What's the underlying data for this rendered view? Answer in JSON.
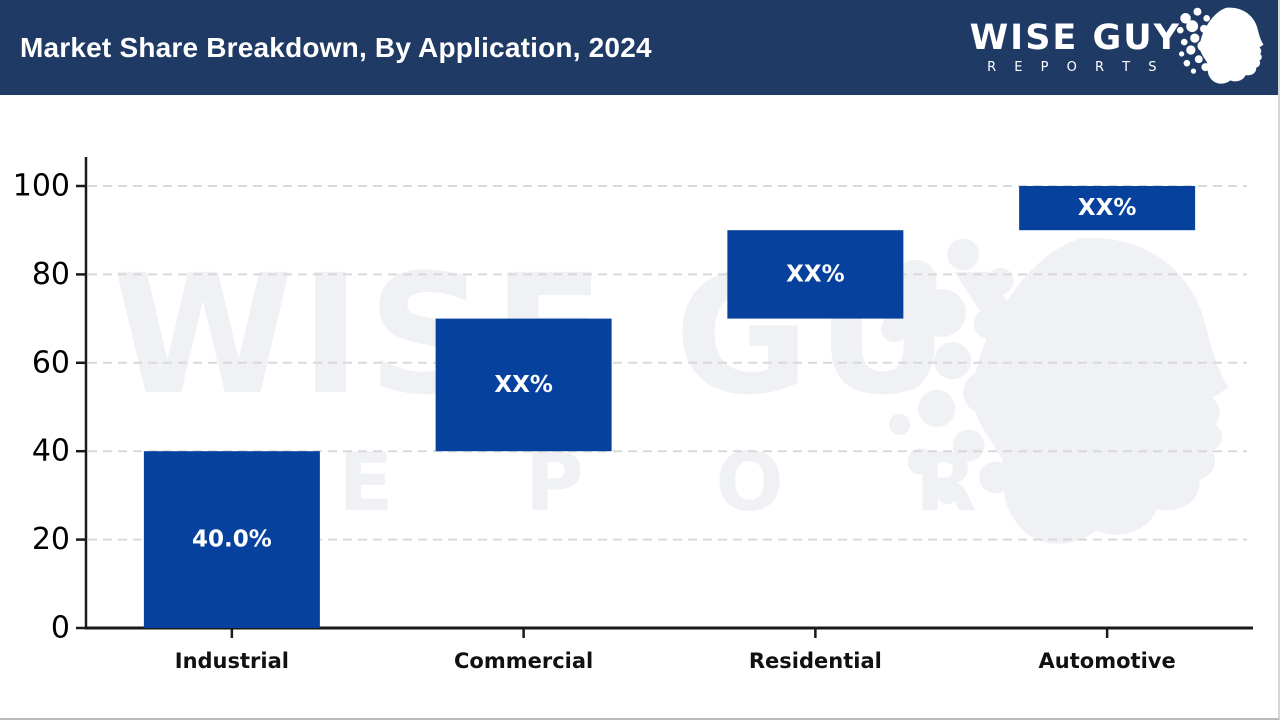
{
  "header": {
    "title": "Market Share Breakdown, By Application, 2024",
    "logo": {
      "line1": "WISE GUY",
      "line2": "R E P O R T S"
    }
  },
  "watermark": {
    "line1": "WISE GUY",
    "line2": "R E P O R T S"
  },
  "colors": {
    "header_bg": "#203a66",
    "bar_blue": "#07419e",
    "grid_gray": "#d9d9d9",
    "axis_black": "#1a1a1a",
    "watermark_gray": "#eff1f4"
  },
  "chart_data": {
    "type": "bar",
    "subtype": "waterfall",
    "title": "Market Share Breakdown, By Application, 2024",
    "categories": [
      "Industrial",
      "Commercial",
      "Residential",
      "Automotive"
    ],
    "series": [
      {
        "name": "Market Share",
        "segments": [
          {
            "start": 0,
            "end": 40,
            "label": "40.0%"
          },
          {
            "start": 40,
            "end": 70,
            "label": "XX%"
          },
          {
            "start": 70,
            "end": 90,
            "label": "XX%"
          },
          {
            "start": 90,
            "end": 100,
            "label": "XX%"
          }
        ]
      }
    ],
    "segment_sizes_pct": [
      40,
      30,
      20,
      10
    ],
    "xlabel": "",
    "ylabel": "",
    "ylim": [
      0,
      100
    ],
    "yticks": [
      0,
      20,
      40,
      60,
      80,
      100
    ],
    "grid": "horizontal-dashed",
    "legend": "none",
    "bar_color": "#07419e",
    "bar_label_color": "#ffffff"
  }
}
